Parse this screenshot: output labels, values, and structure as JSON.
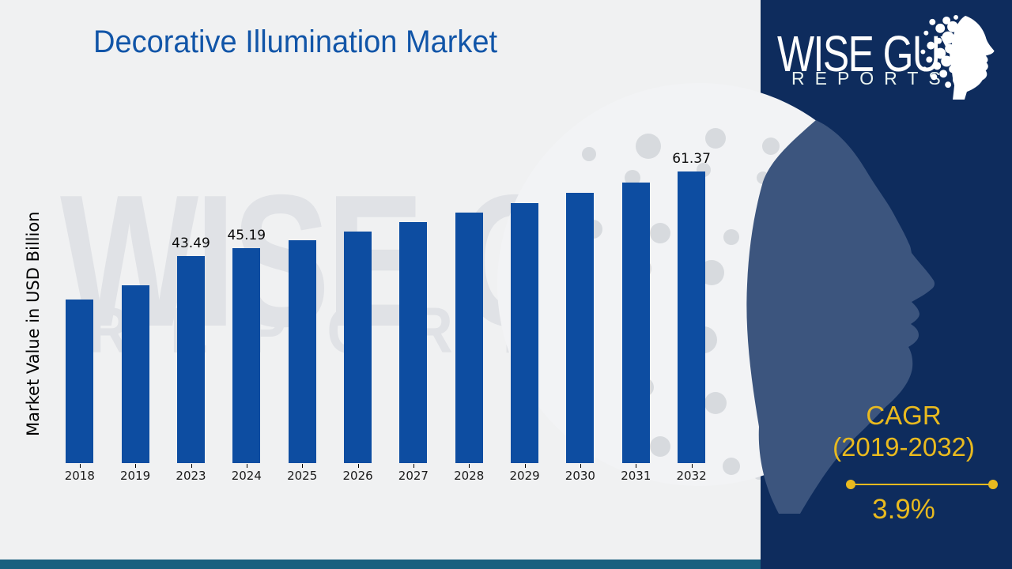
{
  "title": "Decorative Illumination Market",
  "y_axis_label": "Market Value in USD Billion",
  "brand": {
    "logo_line1": "WISE GUY",
    "logo_line2": "REPORTS",
    "watermark_line1": "WISE GUY",
    "watermark_line2": "REPORTS"
  },
  "cagr": {
    "label": "CAGR",
    "range": "(2019-2032)",
    "value": "3.9%"
  },
  "colors": {
    "background": "#f0f1f2",
    "panel_navy": "#0e2c5d",
    "bar_blue": "#0d4da1",
    "title_blue": "#1155a8",
    "accent_gold": "#e9ba1f",
    "footer_teal": "#19607f",
    "watermark_gray": "#e0e2e6"
  },
  "chart_data": {
    "type": "bar",
    "title": "Decorative Illumination Market",
    "xlabel": "",
    "ylabel": "Market Value in USD Billion",
    "categories": [
      "2018",
      "2019",
      "2023",
      "2024",
      "2025",
      "2026",
      "2027",
      "2028",
      "2029",
      "2030",
      "2031",
      "2032"
    ],
    "values": [
      34.4,
      37.4,
      43.49,
      45.19,
      46.95,
      48.78,
      50.68,
      52.66,
      54.71,
      56.85,
      59.06,
      61.37
    ],
    "data_labels": {
      "2023": "43.49",
      "2024": "45.19",
      "2032": "61.37"
    },
    "bar_color": "#0d4da1",
    "ylim": [
      0,
      65
    ],
    "grid": false,
    "legend": null
  }
}
